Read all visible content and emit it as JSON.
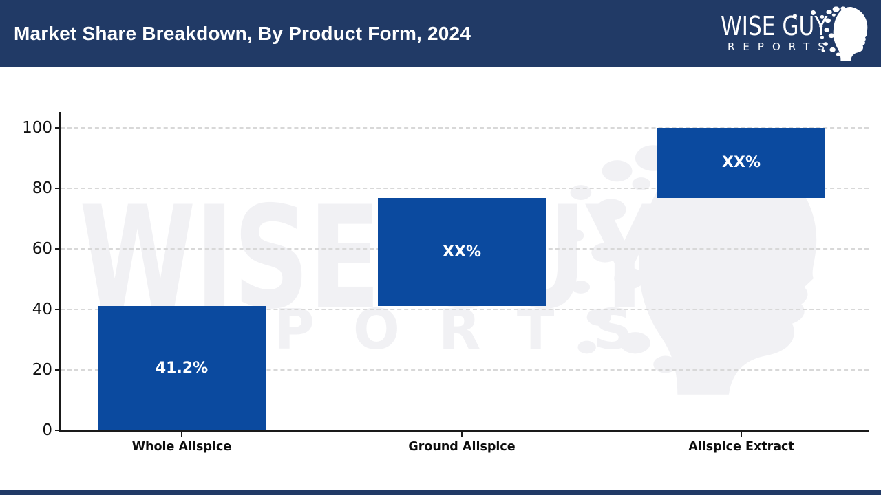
{
  "header": {
    "title": "Market Share Breakdown, By Product Form, 2024",
    "brand": {
      "name": "WISE GUY",
      "tagline": "REPORTS"
    }
  },
  "watermark": {
    "big_text": "WISE GUY",
    "sub_text": "REPORTS"
  },
  "chart_data": {
    "type": "bar",
    "variant": "floating-segment-waterfall",
    "title": "Market Share Breakdown, By Product Form, 2024",
    "categories": [
      "Whole Allspice",
      "Ground Allspice",
      "Allspice Extract"
    ],
    "segments": [
      {
        "category": "Whole Allspice",
        "start": 0,
        "end": 41.2,
        "label": "41.2%"
      },
      {
        "category": "Ground Allspice",
        "start": 41.2,
        "end": 76.8,
        "label": "XX%"
      },
      {
        "category": "Allspice Extract",
        "start": 76.8,
        "end": 100,
        "label": "XX%"
      }
    ],
    "yticks": [
      0,
      20,
      40,
      60,
      80,
      100
    ],
    "ylim": [
      0,
      105
    ],
    "xlabel": "",
    "ylabel": "",
    "grid": "horizontal dashed",
    "legend": "none"
  },
  "colors": {
    "header_bg": "#213A66",
    "footer_bg": "#213A66",
    "title_text": "#FFFFFF",
    "plot_bg": "#FFFFFF",
    "bar": "#0B4A9F",
    "bar_label": "#FFFFFF",
    "grid": "#D8D8D8",
    "axis": "#1A1A1A",
    "watermark": "#F1F1F4"
  }
}
